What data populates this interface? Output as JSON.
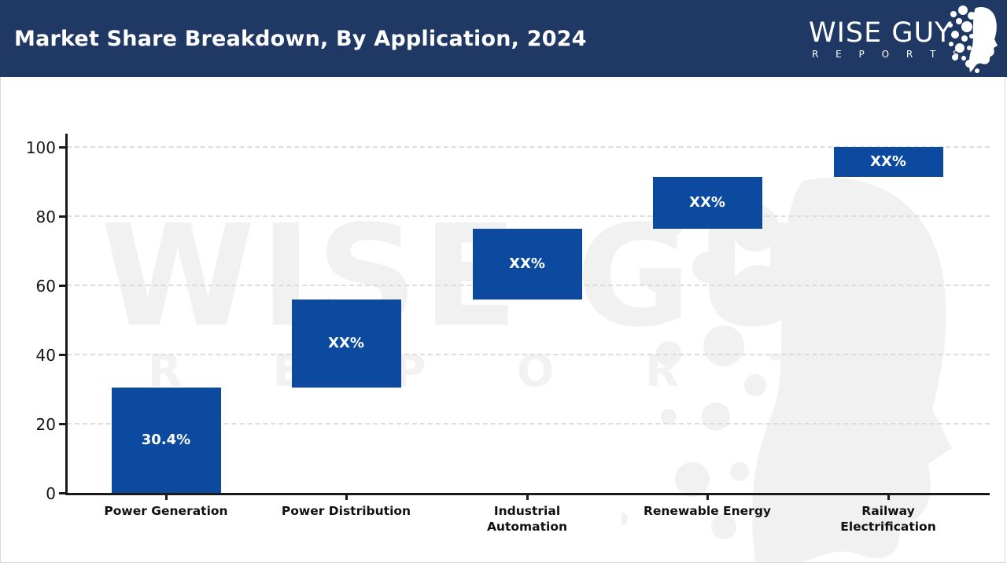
{
  "header": {
    "title": "Market Share Breakdown, By Application, 2024",
    "logo": {
      "line1": "WISE GUY",
      "line2": "R E P O R T S"
    }
  },
  "watermark": {
    "line1": "WISE GUY",
    "line2": "R E P O R T S"
  },
  "colors": {
    "header_bg": "#203864",
    "bar": "#0b4a9e",
    "grid": "#dcdcdc",
    "axis": "#1a1a1a",
    "bar_label_text": "#ffffff",
    "watermark": "#f1f1f1"
  },
  "chart_data": {
    "type": "bar",
    "subtype": "waterfall",
    "title": "Market Share Breakdown, By Application, 2024",
    "xlabel": "",
    "ylabel": "",
    "ylim": [
      0,
      100
    ],
    "yticks": [
      0,
      20,
      40,
      60,
      80,
      100
    ],
    "grid": "dashed-horizontal",
    "legend": "none",
    "bar_color": "#0b4a9e",
    "categories": [
      "Power Generation",
      "Power Distribution",
      "Industrial Automation",
      "Renewable Energy",
      "Railway Electrification"
    ],
    "category_lines": [
      [
        "Power Generation"
      ],
      [
        "Power Distribution"
      ],
      [
        "Industrial",
        "Automation"
      ],
      [
        "Renewable Energy"
      ],
      [
        "Railway",
        "Electrification"
      ]
    ],
    "segments": [
      {
        "category": "Power Generation",
        "start": 0,
        "end": 30.4,
        "value": 30.4,
        "label": "30.4%"
      },
      {
        "category": "Power Distribution",
        "start": 30.4,
        "end": 55.9,
        "value": 25.5,
        "label": "XX%"
      },
      {
        "category": "Industrial Automation",
        "start": 55.9,
        "end": 76.4,
        "value": 20.5,
        "label": "XX%"
      },
      {
        "category": "Renewable Energy",
        "start": 76.4,
        "end": 91.4,
        "value": 15.0,
        "label": "XX%"
      },
      {
        "category": "Railway Electrification",
        "start": 91.4,
        "end": 100,
        "value": 8.6,
        "label": "XX%"
      }
    ]
  }
}
